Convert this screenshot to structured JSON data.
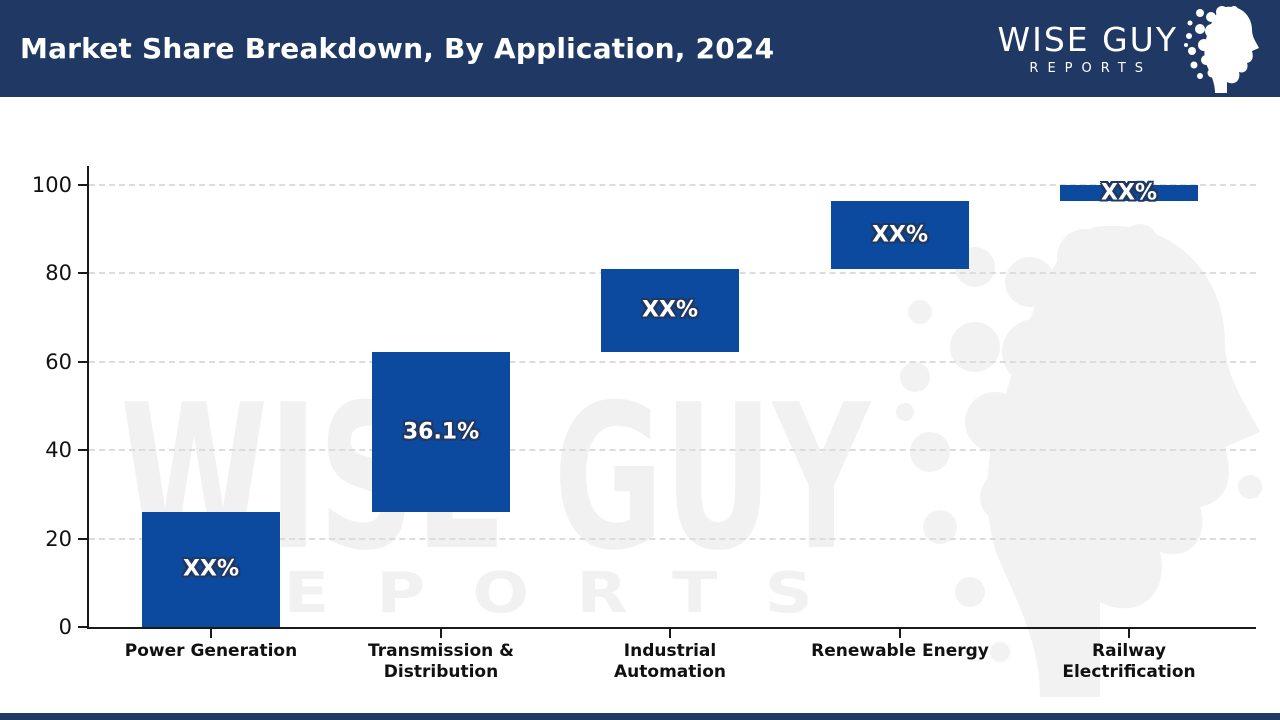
{
  "header": {
    "title": "Market Share Breakdown, By Application, 2024"
  },
  "logo": {
    "line1": "WISE GUY",
    "line2": "REPORTS"
  },
  "watermark": {
    "line1": "WISE GUY",
    "line2": "REPORTS"
  },
  "colors": {
    "header_bg": "#1f3864",
    "footer_bg": "#1f3864",
    "bar": "#0b4a9e",
    "grid": "#dcdcdc",
    "axis": "#1a1a1a",
    "bar_label_text": "#ffffff",
    "bar_label_outline": "#1f3864",
    "watermark": "#f1f1f1"
  },
  "chart_data": {
    "type": "bar",
    "subtype": "waterfall",
    "title": "Market Share Breakdown, By Application, 2024",
    "xlabel": "",
    "ylabel": "",
    "ylim": [
      0,
      100
    ],
    "yticks": [
      0,
      20,
      40,
      60,
      80,
      100
    ],
    "grid": "horizontal-dashed",
    "legend": "none",
    "categories": [
      {
        "slug": "power-generation",
        "lines": [
          "Power Generation"
        ]
      },
      {
        "slug": "transmission-distribution",
        "lines": [
          "Transmission &",
          "Distribution"
        ]
      },
      {
        "slug": "industrial-automation",
        "lines": [
          "Industrial",
          "Automation"
        ]
      },
      {
        "slug": "renewable-energy",
        "lines": [
          "Renewable Energy"
        ]
      },
      {
        "slug": "railway-electrification",
        "lines": [
          "Railway",
          "Electrification"
        ]
      }
    ],
    "segments": [
      {
        "category": "Power Generation",
        "start": 0,
        "end": 26.1,
        "label": "XX%"
      },
      {
        "category": "Transmission & Distribution",
        "start": 26.1,
        "end": 62.2,
        "label": "36.1%"
      },
      {
        "category": "Industrial Automation",
        "start": 62.2,
        "end": 81.1,
        "label": "XX%"
      },
      {
        "category": "Renewable Energy",
        "start": 81.1,
        "end": 96.3,
        "label": "XX%"
      },
      {
        "category": "Railway Electrification",
        "start": 96.3,
        "end": 100.0,
        "label": "XX%"
      }
    ]
  }
}
